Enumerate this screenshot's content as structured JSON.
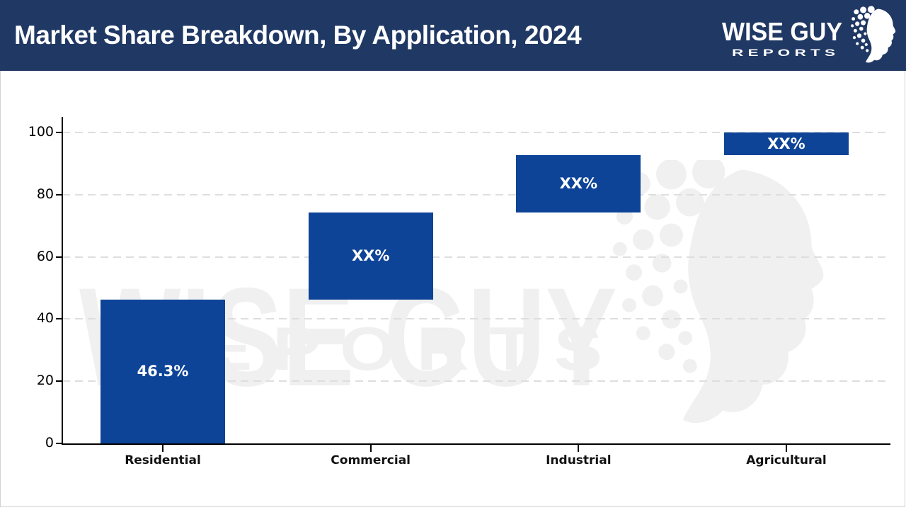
{
  "header": {
    "title": "Market Share Breakdown, By Application, 2024",
    "logo": {
      "line1": "WISE GUY",
      "line2": "R E P O R T S",
      "head_icon": "dotted-head-profile"
    }
  },
  "watermark": {
    "line1": "WISE GUY",
    "line2": "R E P O R T S"
  },
  "colors": {
    "header_bg": "#203864",
    "bar": "#0d4497",
    "grid": "#dedede",
    "axis": "#000000",
    "bar_label": "#ffffff",
    "watermark": "#f0f0f0",
    "frame_border": "#d2d2d2",
    "title_text": "#ffffff"
  },
  "chart_data": {
    "type": "bar",
    "subtype": "waterfall",
    "title": "Market Share Breakdown, By Application, 2024",
    "categories": [
      "Residential",
      "Commercial",
      "Industrial",
      "Agricultural"
    ],
    "segments": [
      {
        "category": "Residential",
        "start": 0,
        "end": 46.3,
        "value": 46.3,
        "label": "46.3%"
      },
      {
        "category": "Commercial",
        "start": 46.3,
        "end": 74.3,
        "value": 28.0,
        "label": "XX%"
      },
      {
        "category": "Industrial",
        "start": 74.3,
        "end": 92.7,
        "value": 18.4,
        "label": "XX%"
      },
      {
        "category": "Agricultural",
        "start": 92.7,
        "end": 100,
        "value": 7.3,
        "label": "XX%"
      }
    ],
    "y_ticks": [
      "0",
      "20",
      "40",
      "60",
      "80",
      "100"
    ],
    "ylim": [
      0,
      104.5
    ],
    "xlabel": "",
    "ylabel": "",
    "grid": "dashed-horizontal",
    "legend": "none",
    "bar_color": "#0d4497"
  }
}
